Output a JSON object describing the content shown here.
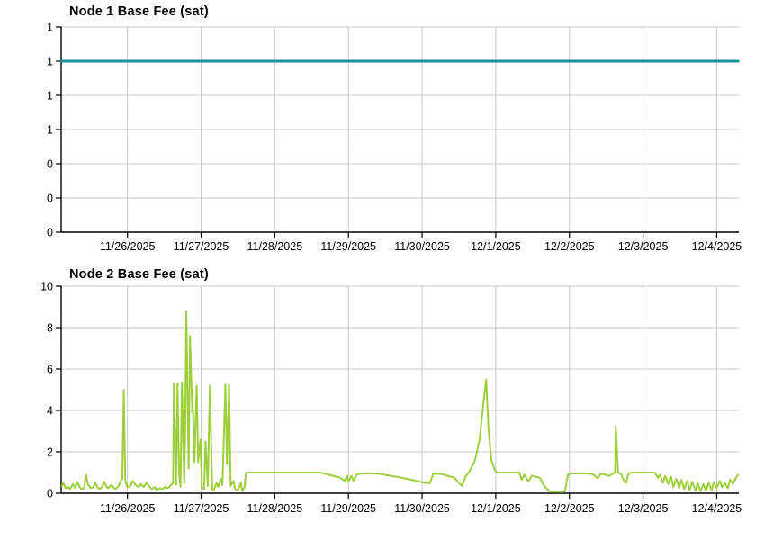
{
  "page": {
    "background": "#ffffff"
  },
  "chart_data": [
    {
      "type": "line",
      "title": "Node 1 Base Fee (sat)",
      "line_color": "#17939B",
      "grid_color": "#C9C9C9",
      "axis_color": "#000000",
      "legend": "none",
      "grid": "on",
      "x_unit": "days since 2025-11-25 00:00",
      "x_domain": [
        0.1,
        9.3
      ],
      "y_domain": [
        0,
        1.2
      ],
      "y_ticks": [
        {
          "v": 1.2,
          "label": "1"
        },
        {
          "v": 1.0,
          "label": "1"
        },
        {
          "v": 0.8,
          "label": "1"
        },
        {
          "v": 0.6,
          "label": "1"
        },
        {
          "v": 0.4,
          "label": "0"
        },
        {
          "v": 0.2,
          "label": "0"
        },
        {
          "v": 0.0,
          "label": "0"
        }
      ],
      "x_ticks": [
        {
          "t": 1,
          "label": "11/26/2025"
        },
        {
          "t": 2,
          "label": "11/27/2025"
        },
        {
          "t": 3,
          "label": "11/28/2025"
        },
        {
          "t": 4,
          "label": "11/29/2025"
        },
        {
          "t": 5,
          "label": "11/30/2025"
        },
        {
          "t": 6,
          "label": "12/1/2025"
        },
        {
          "t": 7,
          "label": "12/2/2025"
        },
        {
          "t": 8,
          "label": "12/3/2025"
        },
        {
          "t": 9,
          "label": "12/4/2025"
        }
      ],
      "points": [
        [
          0.11,
          1
        ],
        [
          9.29,
          1
        ]
      ]
    },
    {
      "type": "line",
      "title": "Node 2 Base Fee (sat)",
      "line_color": "#9CCF3B",
      "grid_color": "#C9C9C9",
      "axis_color": "#000000",
      "legend": "none",
      "grid": "on",
      "x_unit": "days since 2025-11-25 00:00",
      "x_domain": [
        0.1,
        9.3
      ],
      "y_domain": [
        0,
        10
      ],
      "y_ticks": [
        {
          "v": 10,
          "label": "10"
        },
        {
          "v": 8,
          "label": "8"
        },
        {
          "v": 6,
          "label": "6"
        },
        {
          "v": 4,
          "label": "4"
        },
        {
          "v": 2,
          "label": "2"
        },
        {
          "v": 0,
          "label": "0"
        }
      ],
      "x_ticks": [
        {
          "t": 1,
          "label": "11/26/2025"
        },
        {
          "t": 2,
          "label": "11/27/2025"
        },
        {
          "t": 3,
          "label": "11/28/2025"
        },
        {
          "t": 4,
          "label": "11/29/2025"
        },
        {
          "t": 5,
          "label": "11/30/2025"
        },
        {
          "t": 6,
          "label": "12/1/2025"
        },
        {
          "t": 7,
          "label": "12/2/2025"
        },
        {
          "t": 8,
          "label": "12/3/2025"
        },
        {
          "t": 9,
          "label": "12/4/2025"
        }
      ],
      "points": [
        [
          0.11,
          0.35
        ],
        [
          0.13,
          0.5
        ],
        [
          0.16,
          0.25
        ],
        [
          0.2,
          0.3
        ],
        [
          0.22,
          0.2
        ],
        [
          0.26,
          0.45
        ],
        [
          0.29,
          0.25
        ],
        [
          0.32,
          0.55
        ],
        [
          0.35,
          0.3
        ],
        [
          0.38,
          0.2
        ],
        [
          0.41,
          0.25
        ],
        [
          0.44,
          0.9
        ],
        [
          0.46,
          0.45
        ],
        [
          0.5,
          0.25
        ],
        [
          0.54,
          0.3
        ],
        [
          0.56,
          0.5
        ],
        [
          0.6,
          0.25
        ],
        [
          0.62,
          0.2
        ],
        [
          0.66,
          0.3
        ],
        [
          0.68,
          0.55
        ],
        [
          0.72,
          0.3
        ],
        [
          0.74,
          0.25
        ],
        [
          0.78,
          0.4
        ],
        [
          0.82,
          0.25
        ],
        [
          0.84,
          0.2
        ],
        [
          0.88,
          0.35
        ],
        [
          0.91,
          0.6
        ],
        [
          0.93,
          0.7
        ],
        [
          0.95,
          5.0
        ],
        [
          0.97,
          0.6
        ],
        [
          0.98,
          0.5
        ],
        [
          1.0,
          0.3
        ],
        [
          1.04,
          0.35
        ],
        [
          1.07,
          0.6
        ],
        [
          1.11,
          0.4
        ],
        [
          1.15,
          0.3
        ],
        [
          1.18,
          0.45
        ],
        [
          1.22,
          0.3
        ],
        [
          1.26,
          0.5
        ],
        [
          1.29,
          0.35
        ],
        [
          1.33,
          0.2
        ],
        [
          1.37,
          0.3
        ],
        [
          1.4,
          0.15
        ],
        [
          1.44,
          0.25
        ],
        [
          1.48,
          0.2
        ],
        [
          1.51,
          0.3
        ],
        [
          1.55,
          0.25
        ],
        [
          1.59,
          0.4
        ],
        [
          1.62,
          0.5
        ],
        [
          1.63,
          5.3
        ],
        [
          1.66,
          0.4
        ],
        [
          1.68,
          5.3
        ],
        [
          1.7,
          1.0
        ],
        [
          1.72,
          0.3
        ],
        [
          1.74,
          5.35
        ],
        [
          1.77,
          0.5
        ],
        [
          1.78,
          2.0
        ],
        [
          1.8,
          8.8
        ],
        [
          1.83,
          1.2
        ],
        [
          1.85,
          7.6
        ],
        [
          1.88,
          3.9
        ],
        [
          1.89,
          4.0
        ],
        [
          1.91,
          1.5
        ],
        [
          1.94,
          5.2
        ],
        [
          1.96,
          1.5
        ],
        [
          1.99,
          2.6
        ],
        [
          2.01,
          0.3
        ],
        [
          2.04,
          0.2
        ],
        [
          2.06,
          2.5
        ],
        [
          2.09,
          0.35
        ],
        [
          2.12,
          5.2
        ],
        [
          2.15,
          0.2
        ],
        [
          2.17,
          0.15
        ],
        [
          2.21,
          0.5
        ],
        [
          2.23,
          0.3
        ],
        [
          2.27,
          0.7
        ],
        [
          2.29,
          0.4
        ],
        [
          2.33,
          5.25
        ],
        [
          2.35,
          1.4
        ],
        [
          2.38,
          5.25
        ],
        [
          2.4,
          0.35
        ],
        [
          2.44,
          0.6
        ],
        [
          2.46,
          0.2
        ],
        [
          2.5,
          0.15
        ],
        [
          2.54,
          0.5
        ],
        [
          2.56,
          0.1
        ],
        [
          2.59,
          0.3
        ],
        [
          2.61,
          1.0
        ],
        [
          3.61,
          1.0
        ],
        [
          3.67,
          0.95
        ],
        [
          3.79,
          0.85
        ],
        [
          3.89,
          0.75
        ],
        [
          3.95,
          0.6
        ],
        [
          3.98,
          0.85
        ],
        [
          4.0,
          0.55
        ],
        [
          4.04,
          0.85
        ],
        [
          4.07,
          0.6
        ],
        [
          4.11,
          0.9
        ],
        [
          4.16,
          0.95
        ],
        [
          4.28,
          0.97
        ],
        [
          4.4,
          0.95
        ],
        [
          4.65,
          0.8
        ],
        [
          4.89,
          0.62
        ],
        [
          5.07,
          0.48
        ],
        [
          5.11,
          0.5
        ],
        [
          5.15,
          0.95
        ],
        [
          5.26,
          0.93
        ],
        [
          5.34,
          0.85
        ],
        [
          5.44,
          0.75
        ],
        [
          5.5,
          0.5
        ],
        [
          5.54,
          0.35
        ],
        [
          5.59,
          0.8
        ],
        [
          5.65,
          1.1
        ],
        [
          5.72,
          1.6
        ],
        [
          5.78,
          2.6
        ],
        [
          5.83,
          4.3
        ],
        [
          5.87,
          5.5
        ],
        [
          5.9,
          3.2
        ],
        [
          5.94,
          1.6
        ],
        [
          5.99,
          1.1
        ],
        [
          6.02,
          1.0
        ],
        [
          6.32,
          1.0
        ],
        [
          6.35,
          0.65
        ],
        [
          6.39,
          0.9
        ],
        [
          6.44,
          0.55
        ],
        [
          6.49,
          0.85
        ],
        [
          6.54,
          0.8
        ],
        [
          6.6,
          0.75
        ],
        [
          6.65,
          0.4
        ],
        [
          6.68,
          0.25
        ],
        [
          6.73,
          0.1
        ],
        [
          6.78,
          0.07
        ],
        [
          6.84,
          0.08
        ],
        [
          6.9,
          0.05
        ],
        [
          6.94,
          0.1
        ],
        [
          6.98,
          0.9
        ],
        [
          7.01,
          0.95
        ],
        [
          7.15,
          0.97
        ],
        [
          7.27,
          0.95
        ],
        [
          7.33,
          0.9
        ],
        [
          7.38,
          0.72
        ],
        [
          7.43,
          0.95
        ],
        [
          7.49,
          0.9
        ],
        [
          7.54,
          0.83
        ],
        [
          7.59,
          0.95
        ],
        [
          7.62,
          1.0
        ],
        [
          7.63,
          3.25
        ],
        [
          7.66,
          1.0
        ],
        [
          7.7,
          0.95
        ],
        [
          7.74,
          0.6
        ],
        [
          7.77,
          0.5
        ],
        [
          7.8,
          0.95
        ],
        [
          7.85,
          1.0
        ],
        [
          7.94,
          1.0
        ],
        [
          8.06,
          1.0
        ],
        [
          8.16,
          1.0
        ],
        [
          8.2,
          0.75
        ],
        [
          8.23,
          0.9
        ],
        [
          8.27,
          0.5
        ],
        [
          8.3,
          0.85
        ],
        [
          8.34,
          0.45
        ],
        [
          8.38,
          0.8
        ],
        [
          8.41,
          0.3
        ],
        [
          8.45,
          0.7
        ],
        [
          8.49,
          0.25
        ],
        [
          8.52,
          0.65
        ],
        [
          8.56,
          0.2
        ],
        [
          8.6,
          0.6
        ],
        [
          8.63,
          0.15
        ],
        [
          8.67,
          0.55
        ],
        [
          8.71,
          0.12
        ],
        [
          8.74,
          0.5
        ],
        [
          8.78,
          0.1
        ],
        [
          8.82,
          0.45
        ],
        [
          8.85,
          0.12
        ],
        [
          8.89,
          0.5
        ],
        [
          8.93,
          0.15
        ],
        [
          8.96,
          0.55
        ],
        [
          9.0,
          0.25
        ],
        [
          9.04,
          0.6
        ],
        [
          9.07,
          0.3
        ],
        [
          9.11,
          0.5
        ],
        [
          9.15,
          0.25
        ],
        [
          9.18,
          0.65
        ],
        [
          9.22,
          0.45
        ],
        [
          9.26,
          0.75
        ],
        [
          9.29,
          0.9
        ]
      ]
    }
  ]
}
